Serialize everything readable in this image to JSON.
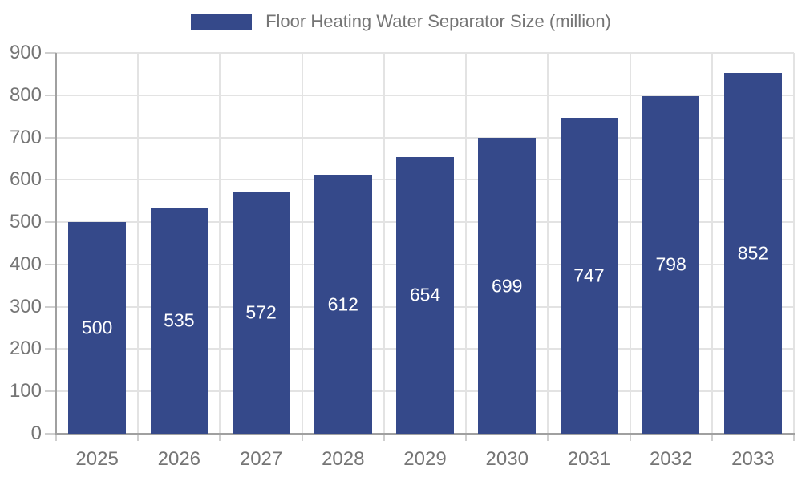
{
  "chart_data": {
    "type": "bar",
    "title": "Floor Heating Water Separator Size (million)",
    "legend_entries": [
      "Floor Heating Water Separator Size (million)"
    ],
    "legend_position": "top-center",
    "categories": [
      "2025",
      "2026",
      "2027",
      "2028",
      "2029",
      "2030",
      "2031",
      "2032",
      "2033"
    ],
    "values": [
      500,
      535,
      572,
      612,
      654,
      699,
      747,
      798,
      852
    ],
    "xlabel": "",
    "ylabel": "",
    "ylim": [
      0,
      900
    ],
    "yticks": [
      0,
      100,
      200,
      300,
      400,
      500,
      600,
      700,
      800,
      900
    ],
    "grid": true,
    "bar_labels_inside": true,
    "colors": {
      "bar": "#35498a",
      "bar_label": "#ffffff",
      "axis_text": "#757575",
      "gridline": "#e3e3e3",
      "axis_line": "#a0a0a0",
      "tick_mark": "#cfcfcf"
    }
  }
}
